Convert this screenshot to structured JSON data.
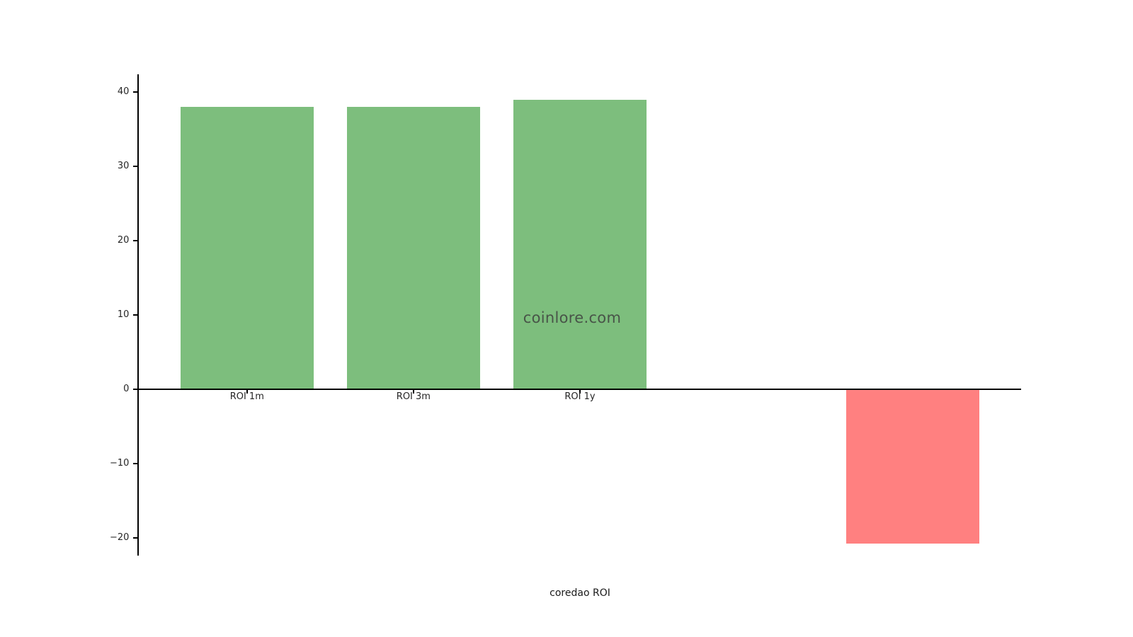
{
  "chart_data": {
    "type": "bar",
    "title": "coredao ROI",
    "watermark": "coinlore.com",
    "categories": [
      "ROI 1m",
      "ROI 3m",
      "ROI 1y",
      "",
      ""
    ],
    "values": [
      38,
      38,
      39,
      null,
      -20.8
    ],
    "bar_colors": [
      "#7dbe7d",
      "#7dbe7d",
      "#7dbe7d",
      null,
      "#ff8080"
    ],
    "positive_color": "#7dbe7d",
    "negative_color": "#ff8080",
    "yticks": [
      40,
      30,
      20,
      10,
      0,
      -10,
      -20
    ],
    "ylim": [
      -22.4,
      42.4
    ],
    "xlim": [
      -0.65,
      4.65
    ],
    "bar_width": 0.8,
    "grid": false,
    "legend": false,
    "axis_color": "#000000",
    "tick_label_color": "#262626",
    "watermark_color": "#3d3d3d"
  }
}
